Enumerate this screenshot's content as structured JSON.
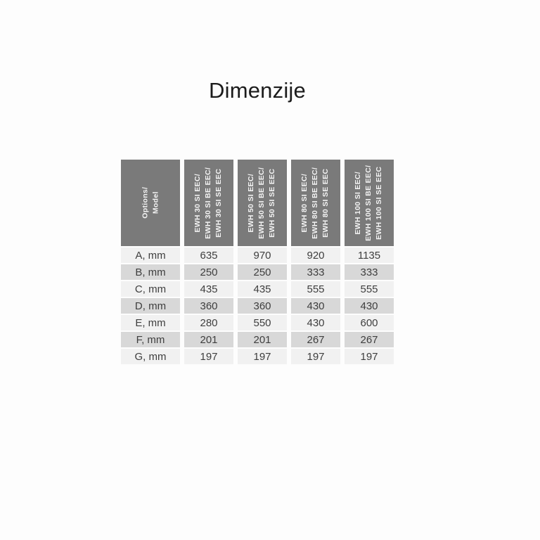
{
  "title": "Dimenzije",
  "colors": {
    "header_bg": "#7a7a7a",
    "header_text": "#f4f4f4",
    "row_light": "#f1f1f1",
    "row_dark": "#d8d8d8",
    "cell_text": "#3e3e3e",
    "title_color": "#1c1c1c",
    "page_bg": "#fdfdfd"
  },
  "table": {
    "corner_header": "Options/\nModel",
    "columns": [
      "EWH 30 SI EEC/\nEWH 30 SI BE EEC/\nEWH 30 SI SE EEC",
      "EWH 50 SI EEC/\nEWH 50 SI BE EEC/\nEWH 50 SI SE EEC",
      "EWH 80 SI EEC/\nEWH 80 SI BE EEC/\nEWH 80 SI SE EEC",
      "EWH 100 SI EEC/\nEWH 100 SI BE EEC/\nEWH 100 SI SE EEC"
    ],
    "rows": [
      {
        "label": "A, mm",
        "values": [
          "635",
          "970",
          "920",
          "1135"
        ]
      },
      {
        "label": "B, mm",
        "values": [
          "250",
          "250",
          "333",
          "333"
        ]
      },
      {
        "label": "C, mm",
        "values": [
          "435",
          "435",
          "555",
          "555"
        ]
      },
      {
        "label": "D, mm",
        "values": [
          "360",
          "360",
          "430",
          "430"
        ]
      },
      {
        "label": "E, mm",
        "values": [
          "280",
          "550",
          "430",
          "600"
        ]
      },
      {
        "label": "F, mm",
        "values": [
          "201",
          "201",
          "267",
          "267"
        ]
      },
      {
        "label": "G, mm",
        "values": [
          "197",
          "197",
          "197",
          "197"
        ]
      }
    ]
  },
  "chart_data": {
    "type": "table",
    "title": "Dimenzije",
    "row_labels": [
      "A, mm",
      "B, mm",
      "C, mm",
      "D, mm",
      "E, mm",
      "F, mm",
      "G, mm"
    ],
    "column_labels": [
      "EWH 30 SI EEC/ EWH 30 SI BE EEC/ EWH 30 SI SE EEC",
      "EWH 50 SI EEC/ EWH 50 SI BE EEC/ EWH 50 SI SE EEC",
      "EWH 80 SI EEC/ EWH 80 SI BE EEC/ EWH 80 SI SE EEC",
      "EWH 100 SI EEC/ EWH 100 SI BE EEC/ EWH 100 SI SE EEC"
    ],
    "values": [
      [
        635,
        970,
        920,
        1135
      ],
      [
        250,
        250,
        333,
        333
      ],
      [
        435,
        435,
        555,
        555
      ],
      [
        360,
        360,
        430,
        430
      ],
      [
        280,
        550,
        430,
        600
      ],
      [
        201,
        201,
        267,
        267
      ],
      [
        197,
        197,
        197,
        197
      ]
    ]
  }
}
